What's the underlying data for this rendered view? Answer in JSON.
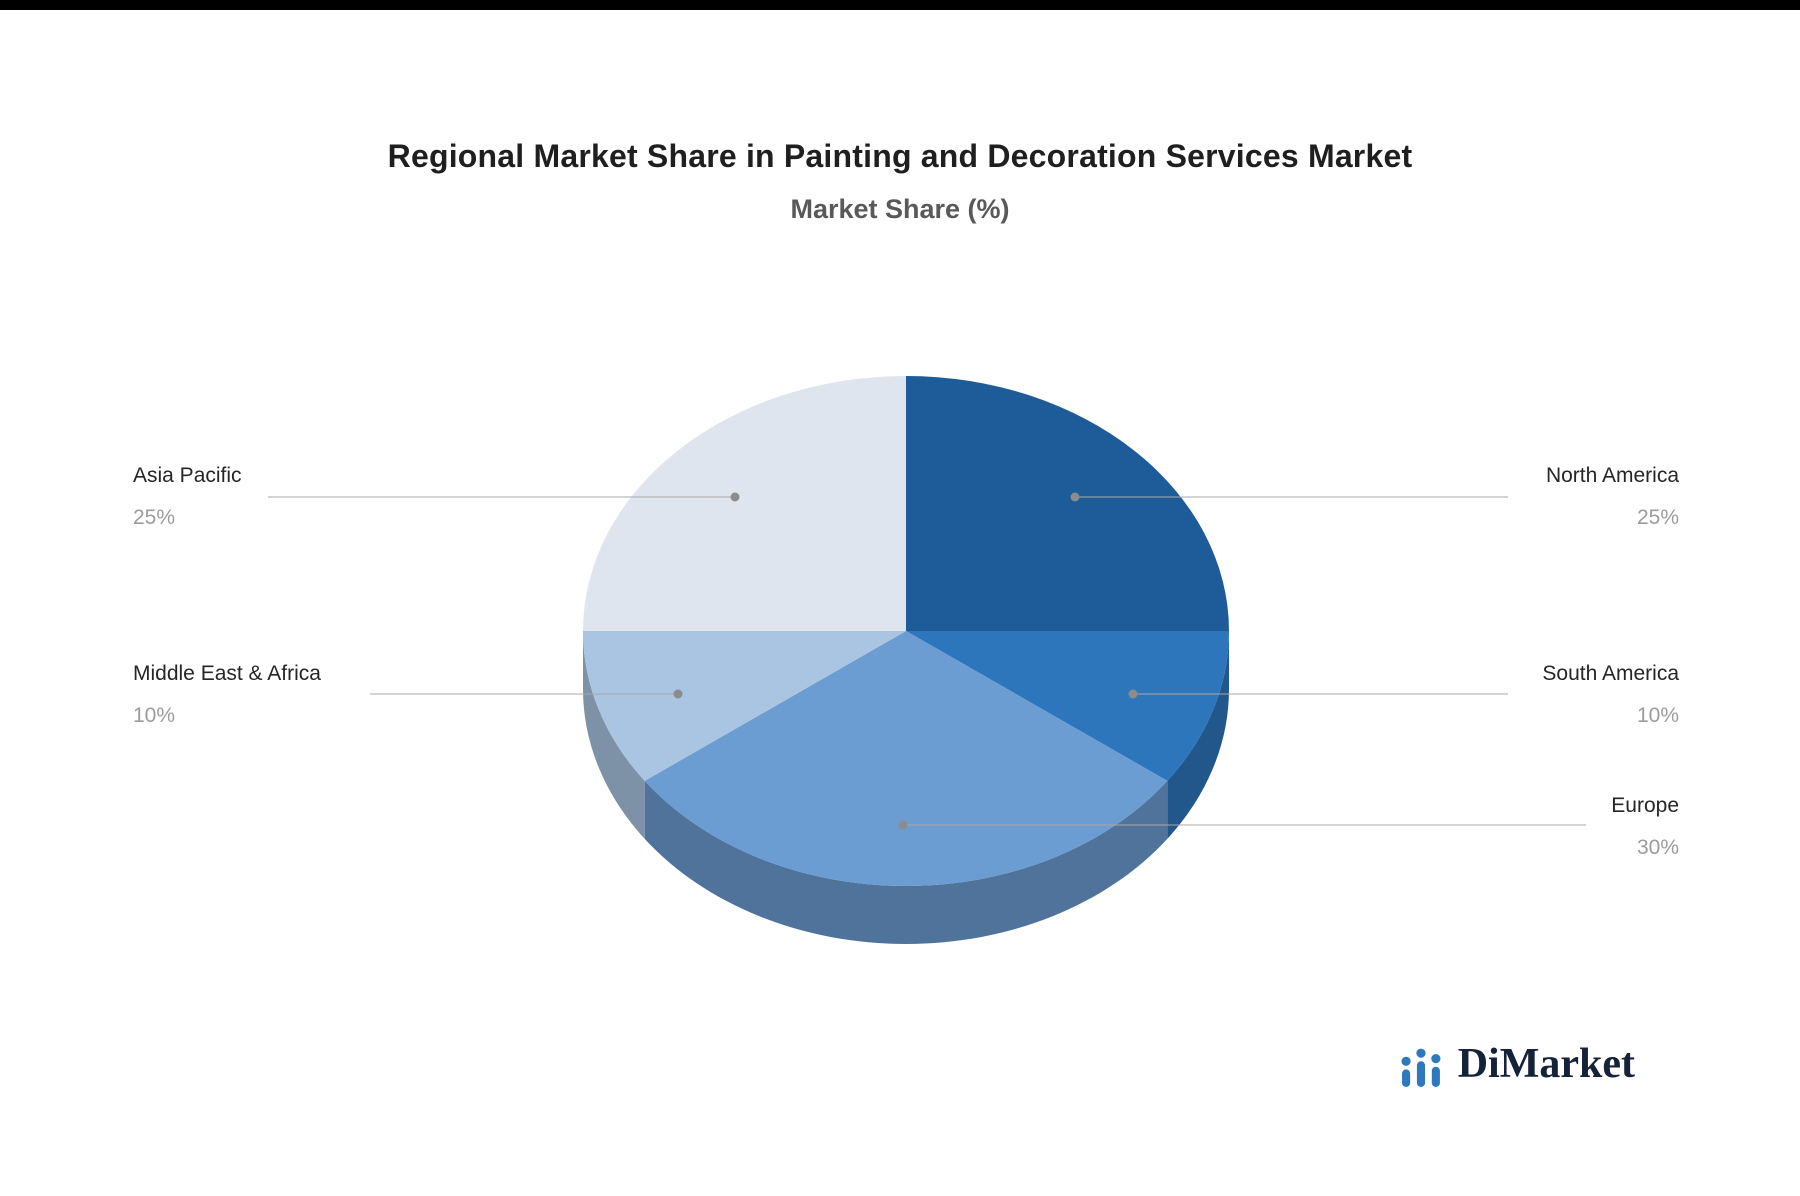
{
  "page": {
    "top_bar_color": "#000000",
    "background_color": "#ffffff"
  },
  "brand": {
    "name": "DiMarket",
    "icon": "bar-chart-icon",
    "icon_color": "#2e79bd",
    "text_color": "#152238"
  },
  "chart_data": {
    "type": "pie",
    "title": "Regional Market Share in Painting and Decoration Services Market",
    "subtitle": "Market Share (%)",
    "unit": "%",
    "style": "3d",
    "start_angle": "top",
    "direction": "clockwise",
    "legend_position": "callout-labels",
    "slices": [
      {
        "label": "North America",
        "value": 25,
        "value_label": "25%",
        "color": "#1d5c99",
        "label_side": "right"
      },
      {
        "label": "South America",
        "value": 10,
        "value_label": "10%",
        "color": "#2d76bb",
        "label_side": "right"
      },
      {
        "label": "Europe",
        "value": 30,
        "value_label": "30%",
        "color": "#6b9cd2",
        "label_side": "right"
      },
      {
        "label": "Middle East & Africa",
        "value": 10,
        "value_label": "10%",
        "color": "#a9c5e2",
        "label_side": "left"
      },
      {
        "label": "Asia Pacific",
        "value": 25,
        "value_label": "25%",
        "color": "#dfe5ee",
        "label_side": "left"
      }
    ],
    "leader_line_color": "#a8a8a8",
    "leader_dot_color": "#8c8c8c"
  }
}
